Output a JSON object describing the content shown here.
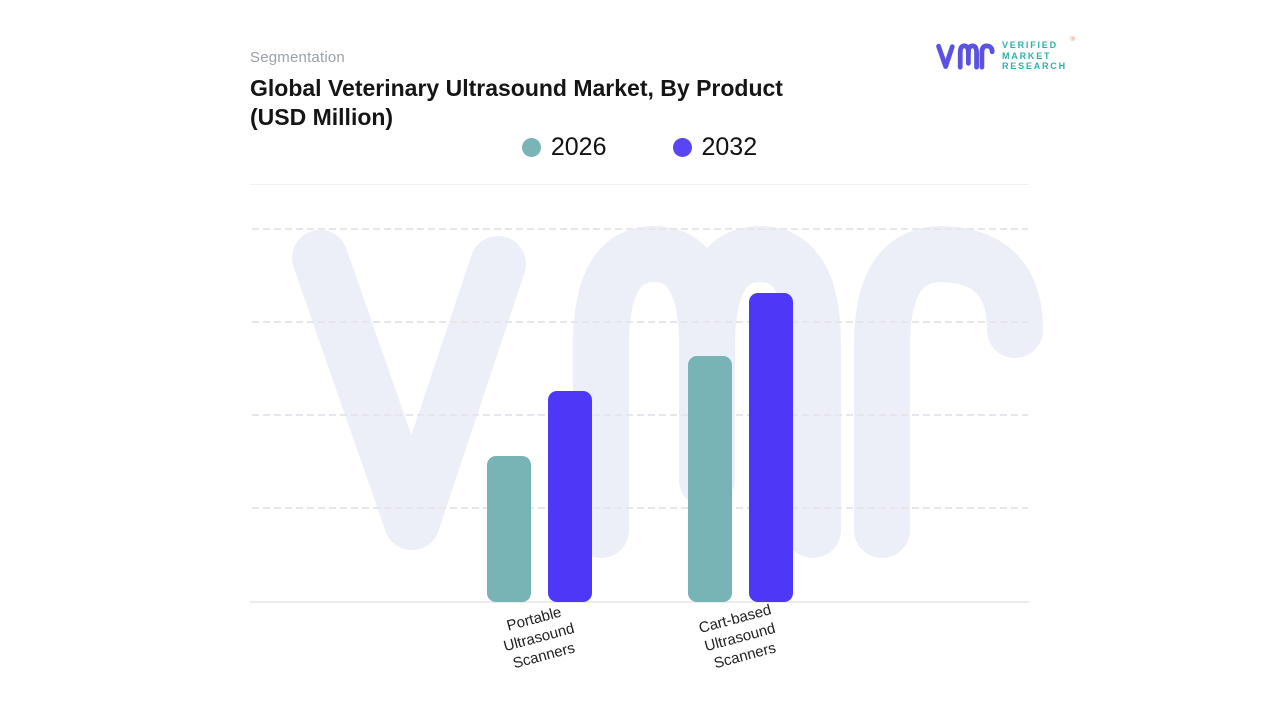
{
  "page": {
    "background": "#ffffff"
  },
  "header": {
    "eyebrow": "Segmentation",
    "title_line1": "Global Veterinary Ultrasound Market, By Product",
    "title_line2": "(USD Million)"
  },
  "logo": {
    "glyph": "vmr-monogram",
    "glyph_color": "#5b51e3",
    "text_lines": [
      "VERIFIED",
      "MARKET",
      "RESEARCH"
    ],
    "text_color": "#2eb2a8",
    "registered_mark": "®",
    "registered_mark_color": "#f07e3f"
  },
  "legend": {
    "position": "top-center",
    "items": [
      {
        "label": "2026",
        "color": "#79b4b6"
      },
      {
        "label": "2032",
        "color": "#5946f2"
      }
    ]
  },
  "chart_data": {
    "type": "bar",
    "title": "Global Veterinary Ultrasound Market, By Product (USD Million)",
    "categories": [
      "Portable Ultrasound Scanners",
      "Cart-based Ultrasound Scanners"
    ],
    "series": [
      {
        "name": "2026",
        "color": "#78b3b5",
        "values_pct_of_plot_height": [
          39.0,
          65.5
        ]
      },
      {
        "name": "2032",
        "color": "#4c38f6",
        "values_pct_of_plot_height": [
          56.3,
          82.4
        ]
      }
    ],
    "xlabel": "",
    "ylabel": "",
    "y_axis_ticks": "none shown (unlabeled axis)",
    "grid": {
      "horizontal_dashed_gridlines": 4,
      "baseline": "solid",
      "color": "#e6e6ec"
    },
    "legend_position": "top-center",
    "watermark": {
      "name": "vmr-monogram",
      "color": "#edeff8"
    },
    "bar_style": {
      "corner_radius_px": 9,
      "label_rotation_deg": -15
    }
  }
}
